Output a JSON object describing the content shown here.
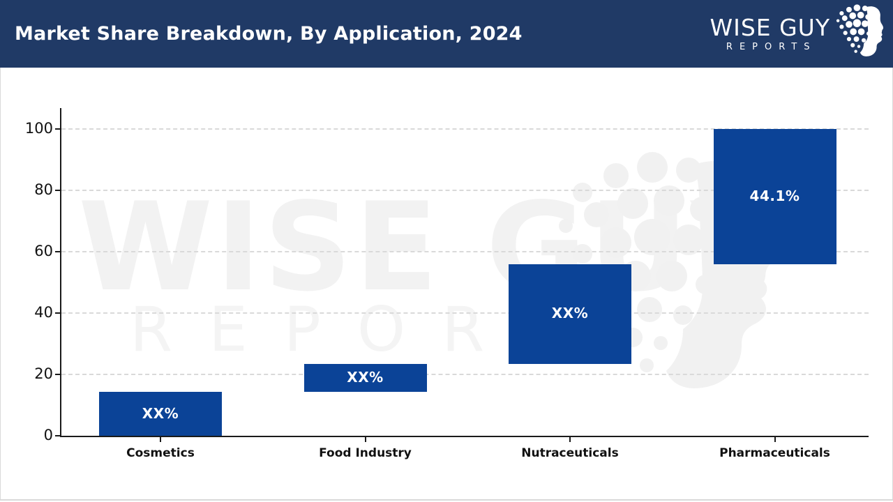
{
  "header": {
    "title": "Market Share Breakdown, By Application, 2024",
    "logo": {
      "wordmark": "WISE GUY",
      "subtext": "REPORTS",
      "icon": "dotted-head-profile-icon"
    }
  },
  "watermark": {
    "line1": "WISE GUY",
    "line2": "REPORTS"
  },
  "colors": {
    "header_bg": "#203a66",
    "bar_fill": "#0b4397",
    "bar_label": "#ffffff",
    "axis": "#1a1a1a",
    "gridline": "#d9d9d9",
    "watermark": "#f2f2f2"
  },
  "chart_data": {
    "type": "bar",
    "subtype": "waterfall",
    "title": "Market Share Breakdown, By Application, 2024",
    "xlabel": "",
    "ylabel": "",
    "ylim": [
      0,
      100
    ],
    "yticks": [
      0,
      20,
      40,
      60,
      80,
      100
    ],
    "grid": "horizontal-dashed",
    "legend": "none",
    "categories": [
      "Cosmetics",
      "Food Industry",
      "Nutraceuticals",
      "Pharmaceuticals"
    ],
    "segments": [
      {
        "category": "Cosmetics",
        "start": 0,
        "end": 14.3,
        "height": 14.3,
        "label": "XX%"
      },
      {
        "category": "Food Industry",
        "start": 14.3,
        "end": 23.5,
        "height": 9.2,
        "label": "XX%"
      },
      {
        "category": "Nutraceuticals",
        "start": 23.5,
        "end": 55.9,
        "height": 32.4,
        "label": "XX%"
      },
      {
        "category": "Pharmaceuticals",
        "start": 55.9,
        "end": 100,
        "height": 44.1,
        "label": "44.1%"
      }
    ]
  }
}
